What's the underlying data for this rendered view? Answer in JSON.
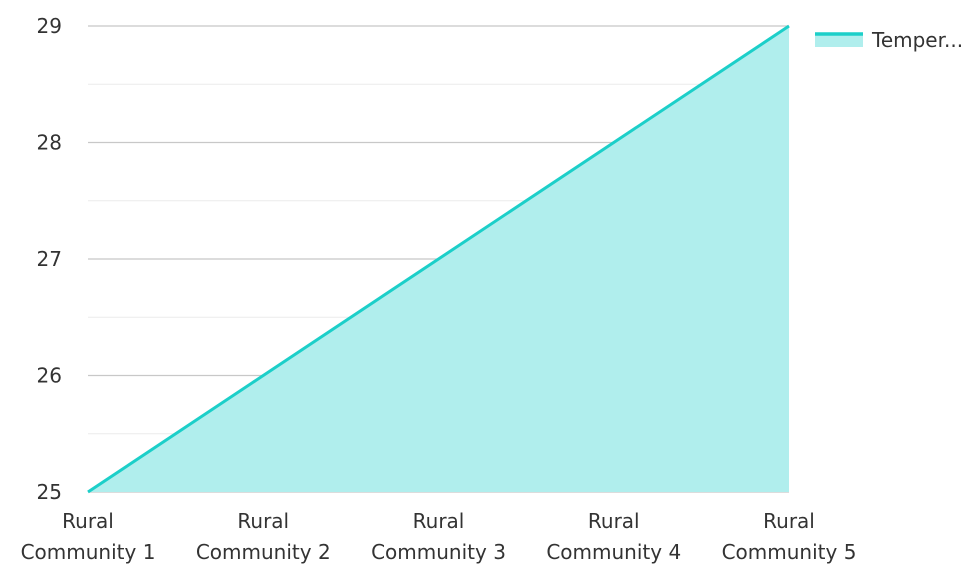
{
  "chart_data": {
    "type": "area",
    "categories": [
      [
        "Rural",
        "Community 1"
      ],
      [
        "Rural",
        "Community 2"
      ],
      [
        "Rural",
        "Community 3"
      ],
      [
        "Rural",
        "Community 4"
      ],
      [
        "Rural",
        "Community 5"
      ]
    ],
    "series": [
      {
        "name": "Temper...",
        "values": [
          25,
          26,
          27,
          28,
          29
        ],
        "line_color": "#1ccfc9",
        "fill_color": "#b0eeed"
      }
    ],
    "yticks": [
      "25",
      "26",
      "27",
      "28",
      "29"
    ],
    "ylim": [
      25,
      29
    ],
    "grid": true,
    "legend_position": "top-right",
    "title": "",
    "xlabel": "",
    "ylabel": ""
  }
}
